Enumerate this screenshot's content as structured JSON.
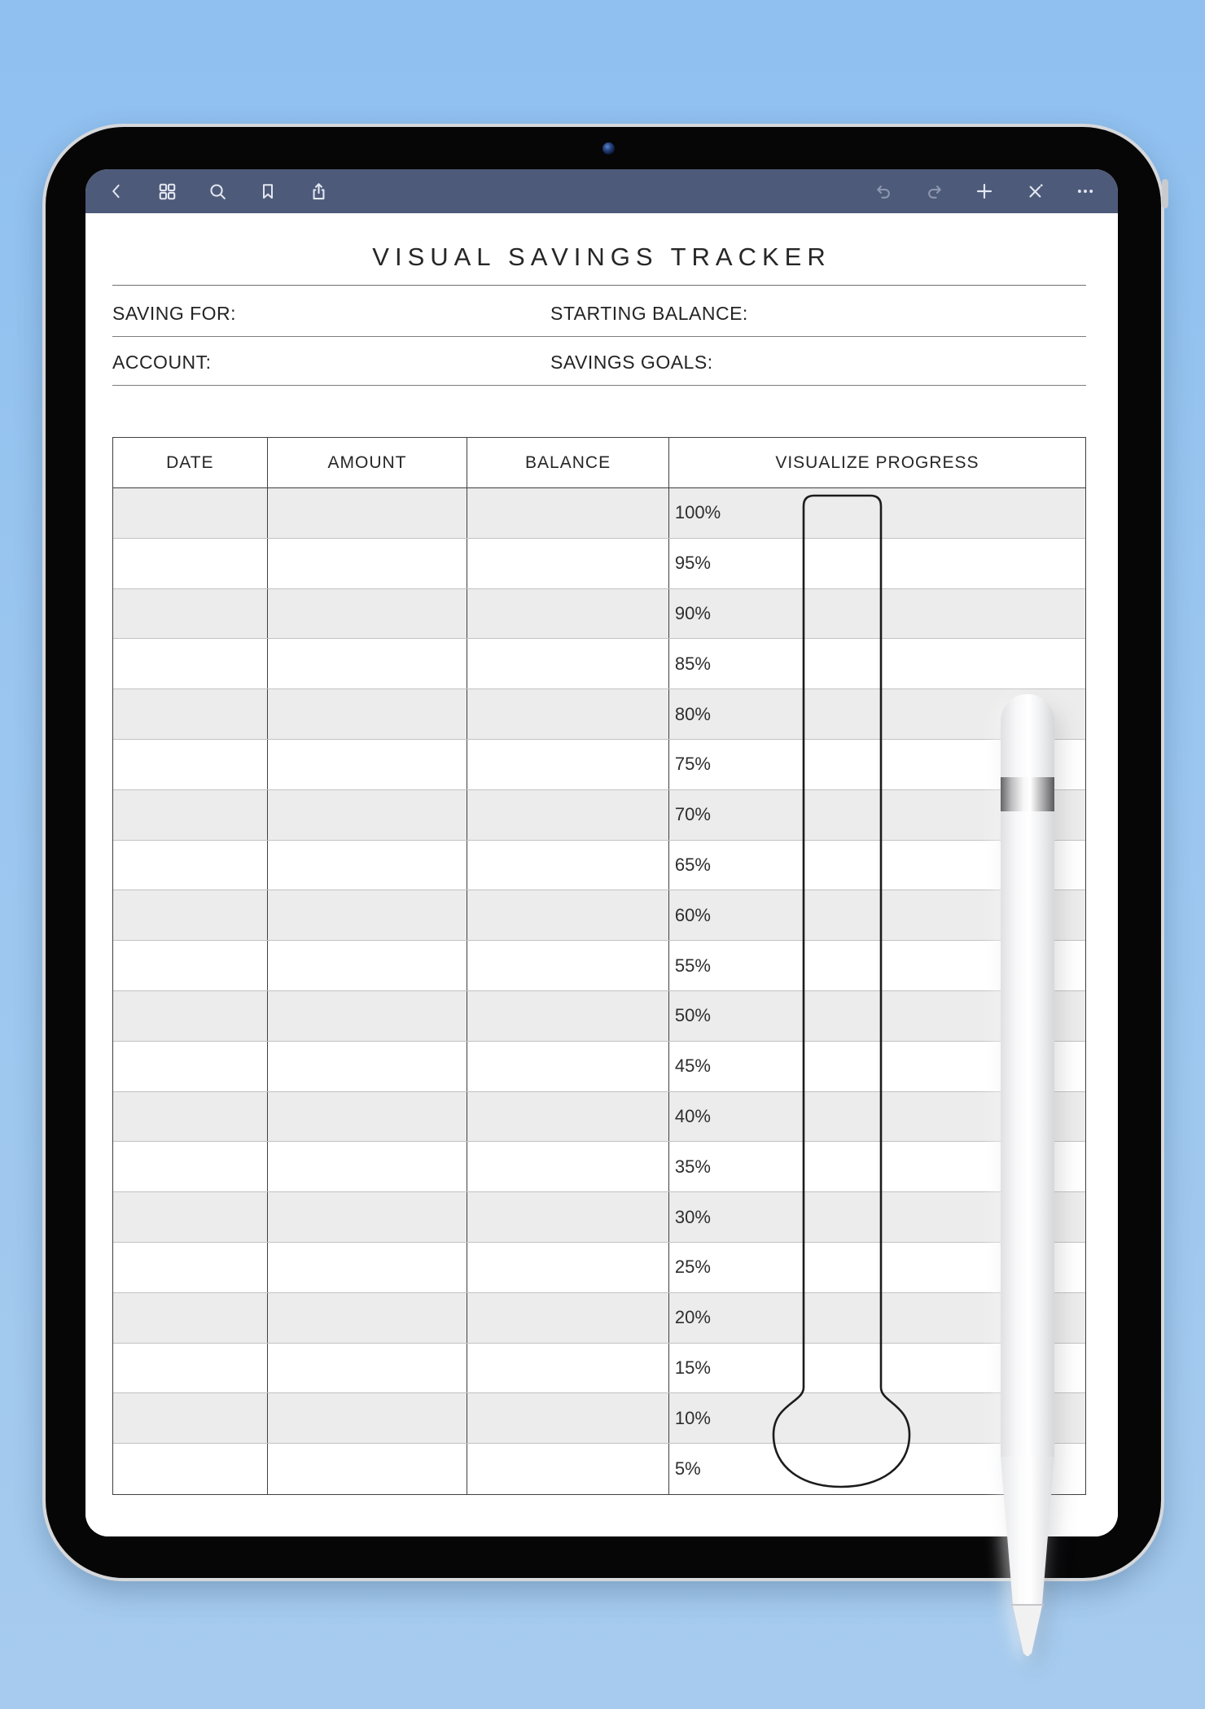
{
  "device": {
    "type": "tablet",
    "camera_icon": "front-camera",
    "side_button": "power-button"
  },
  "toolbar": {
    "color": "#4e5a79",
    "left_icons": [
      "back-chevron",
      "grid-pages",
      "search",
      "bookmark",
      "share"
    ],
    "right_icons": [
      "undo",
      "redo",
      "add-page",
      "pen-tool-close",
      "more-options"
    ]
  },
  "page": {
    "title": "VISUAL SAVINGS TRACKER",
    "fields": {
      "saving_for": "SAVING FOR:",
      "starting_balance": "STARTING BALANCE:",
      "account": "ACCOUNT:",
      "savings_goals": "SAVINGS GOALS:"
    },
    "table": {
      "columns": [
        "DATE",
        "AMOUNT",
        "BALANCE",
        "VISUALIZE PROGRESS"
      ],
      "progress_levels": [
        "100%",
        "95%",
        "90%",
        "85%",
        "80%",
        "75%",
        "70%",
        "65%",
        "60%",
        "55%",
        "50%",
        "45%",
        "40%",
        "35%",
        "30%",
        "25%",
        "20%",
        "15%",
        "10%",
        "5%"
      ],
      "row_count": 20
    },
    "thermometer": "empty-thermometer-outline"
  },
  "colors": {
    "background_blue": "#9bc6ef",
    "toolbar": "#4e5a79",
    "row_stripe": "#ececec",
    "table_border": "#3f3f3f",
    "row_line": "#c2c2c2",
    "thermometer_stroke": "#1c1c1c",
    "pencil_white": "#f7f7f8"
  }
}
